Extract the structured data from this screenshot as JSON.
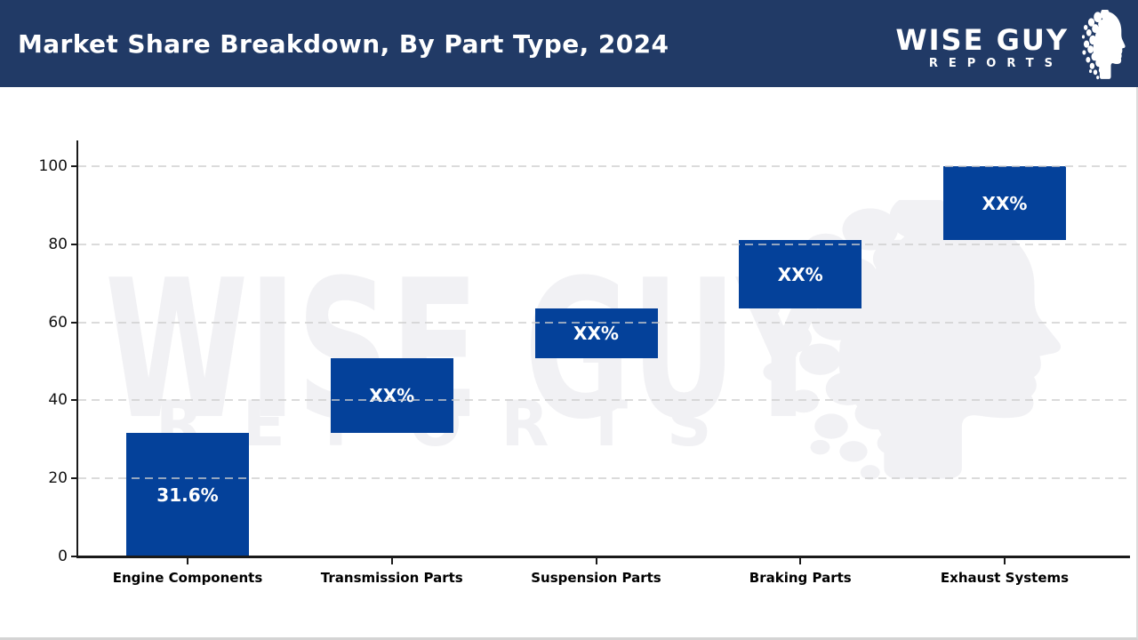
{
  "header": {
    "title": "Market Share Breakdown, By Part Type, 2024",
    "logo": {
      "name": "WISE GUY",
      "subtitle": "REPORTS"
    }
  },
  "watermark": {
    "line1": "WISE GUY",
    "line2": "REPORTS"
  },
  "chart_data": {
    "type": "bar",
    "subtype": "waterfall",
    "title": "Market Share Breakdown, By Part Type, 2024",
    "categories": [
      "Engine Components",
      "Transmission Parts",
      "Suspension Parts",
      "Braking Parts",
      "Exhaust Systems"
    ],
    "segments": [
      {
        "category": "Engine Components",
        "start": 0,
        "end": 31.6,
        "label": "31.6%"
      },
      {
        "category": "Transmission Parts",
        "start": 31.6,
        "end": 50.7,
        "label": "XX%"
      },
      {
        "category": "Suspension Parts",
        "start": 50.7,
        "end": 63.5,
        "label": "XX%"
      },
      {
        "category": "Braking Parts",
        "start": 63.5,
        "end": 81.0,
        "label": "XX%"
      },
      {
        "category": "Exhaust Systems",
        "start": 81.0,
        "end": 100.0,
        "label": "XX%"
      }
    ],
    "xlabel": "",
    "ylabel": "",
    "ylim": [
      0,
      100
    ],
    "yticks": [
      0,
      20,
      40,
      60,
      80,
      100
    ],
    "grid": "horizontal-dashed",
    "legend": "none",
    "colors": {
      "bar": "#04419a",
      "grid": "#d9d9d9",
      "axis": "#1a1a1a",
      "header_bg": "#213a66",
      "bar_label": "#ffffff",
      "watermark": "#f1f1f4"
    }
  }
}
